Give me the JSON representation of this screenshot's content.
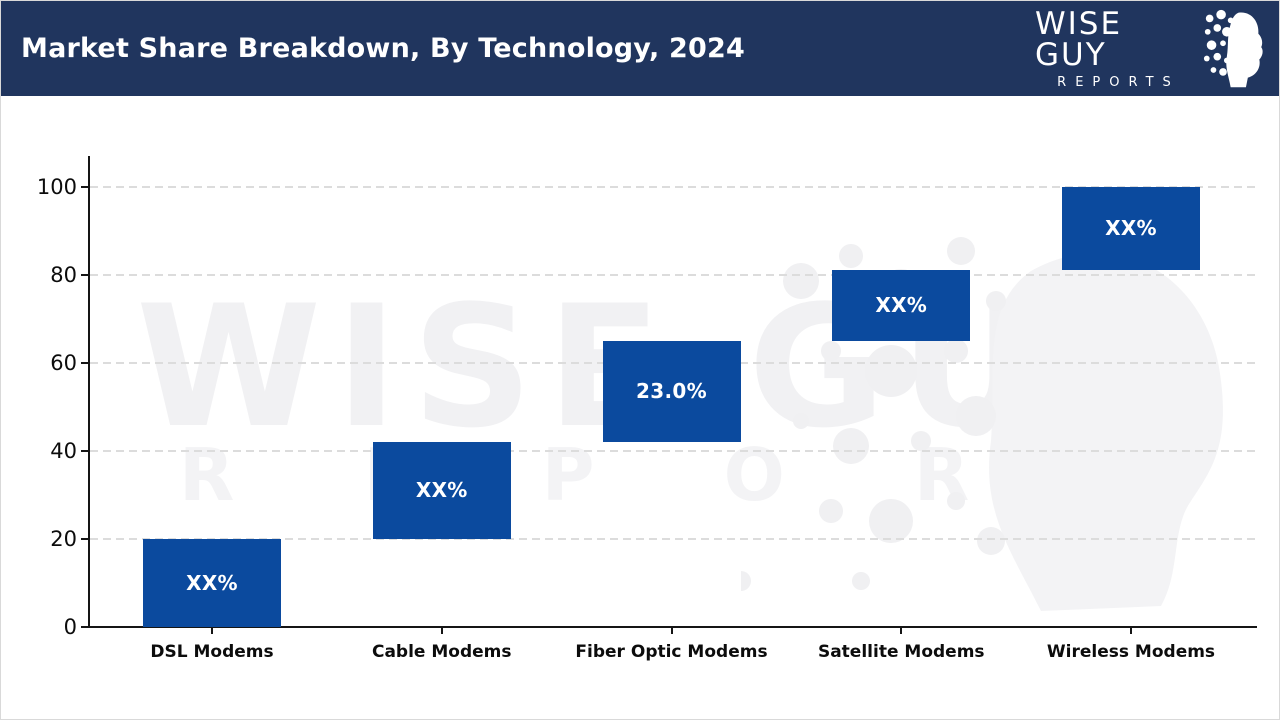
{
  "header": {
    "title": "Market Share Breakdown, By Technology, 2024",
    "logo": {
      "line1": "WISE GUY",
      "line2": "REPORTS"
    }
  },
  "watermark": {
    "line1": "WISE GUY",
    "line2": "R E P O R T S"
  },
  "colors": {
    "header_bg": "#20355e",
    "bar": "#0b4a9e",
    "axis": "#151515",
    "grid": "#dcdcdc",
    "watermark": "#f1f1f3"
  },
  "chart_data": {
    "type": "bar",
    "subtype": "waterfall",
    "title": "Market Share Breakdown, By Technology, 2024",
    "xlabel": "",
    "ylabel": "",
    "ylim": [
      0,
      100
    ],
    "yticks": [
      0,
      20,
      40,
      60,
      80,
      100
    ],
    "grid": "horizontal dashed",
    "legend": "none",
    "categories": [
      "DSL Modems",
      "Cable Modems",
      "Fiber Optic Modems",
      "Satellite Modems",
      "Wireless Modems"
    ],
    "segments": [
      {
        "category": "DSL Modems",
        "start": 0,
        "end": 20,
        "value": 20,
        "value_label": "XX%"
      },
      {
        "category": "Cable Modems",
        "start": 20,
        "end": 42,
        "value": 22,
        "value_label": "XX%"
      },
      {
        "category": "Fiber Optic Modems",
        "start": 42,
        "end": 65,
        "value": 23,
        "value_label": "23.0%"
      },
      {
        "category": "Satellite Modems",
        "start": 65,
        "end": 81,
        "value": 16,
        "value_label": "XX%"
      },
      {
        "category": "Wireless Modems",
        "start": 81,
        "end": 100,
        "value": 19,
        "value_label": "XX%"
      }
    ]
  }
}
